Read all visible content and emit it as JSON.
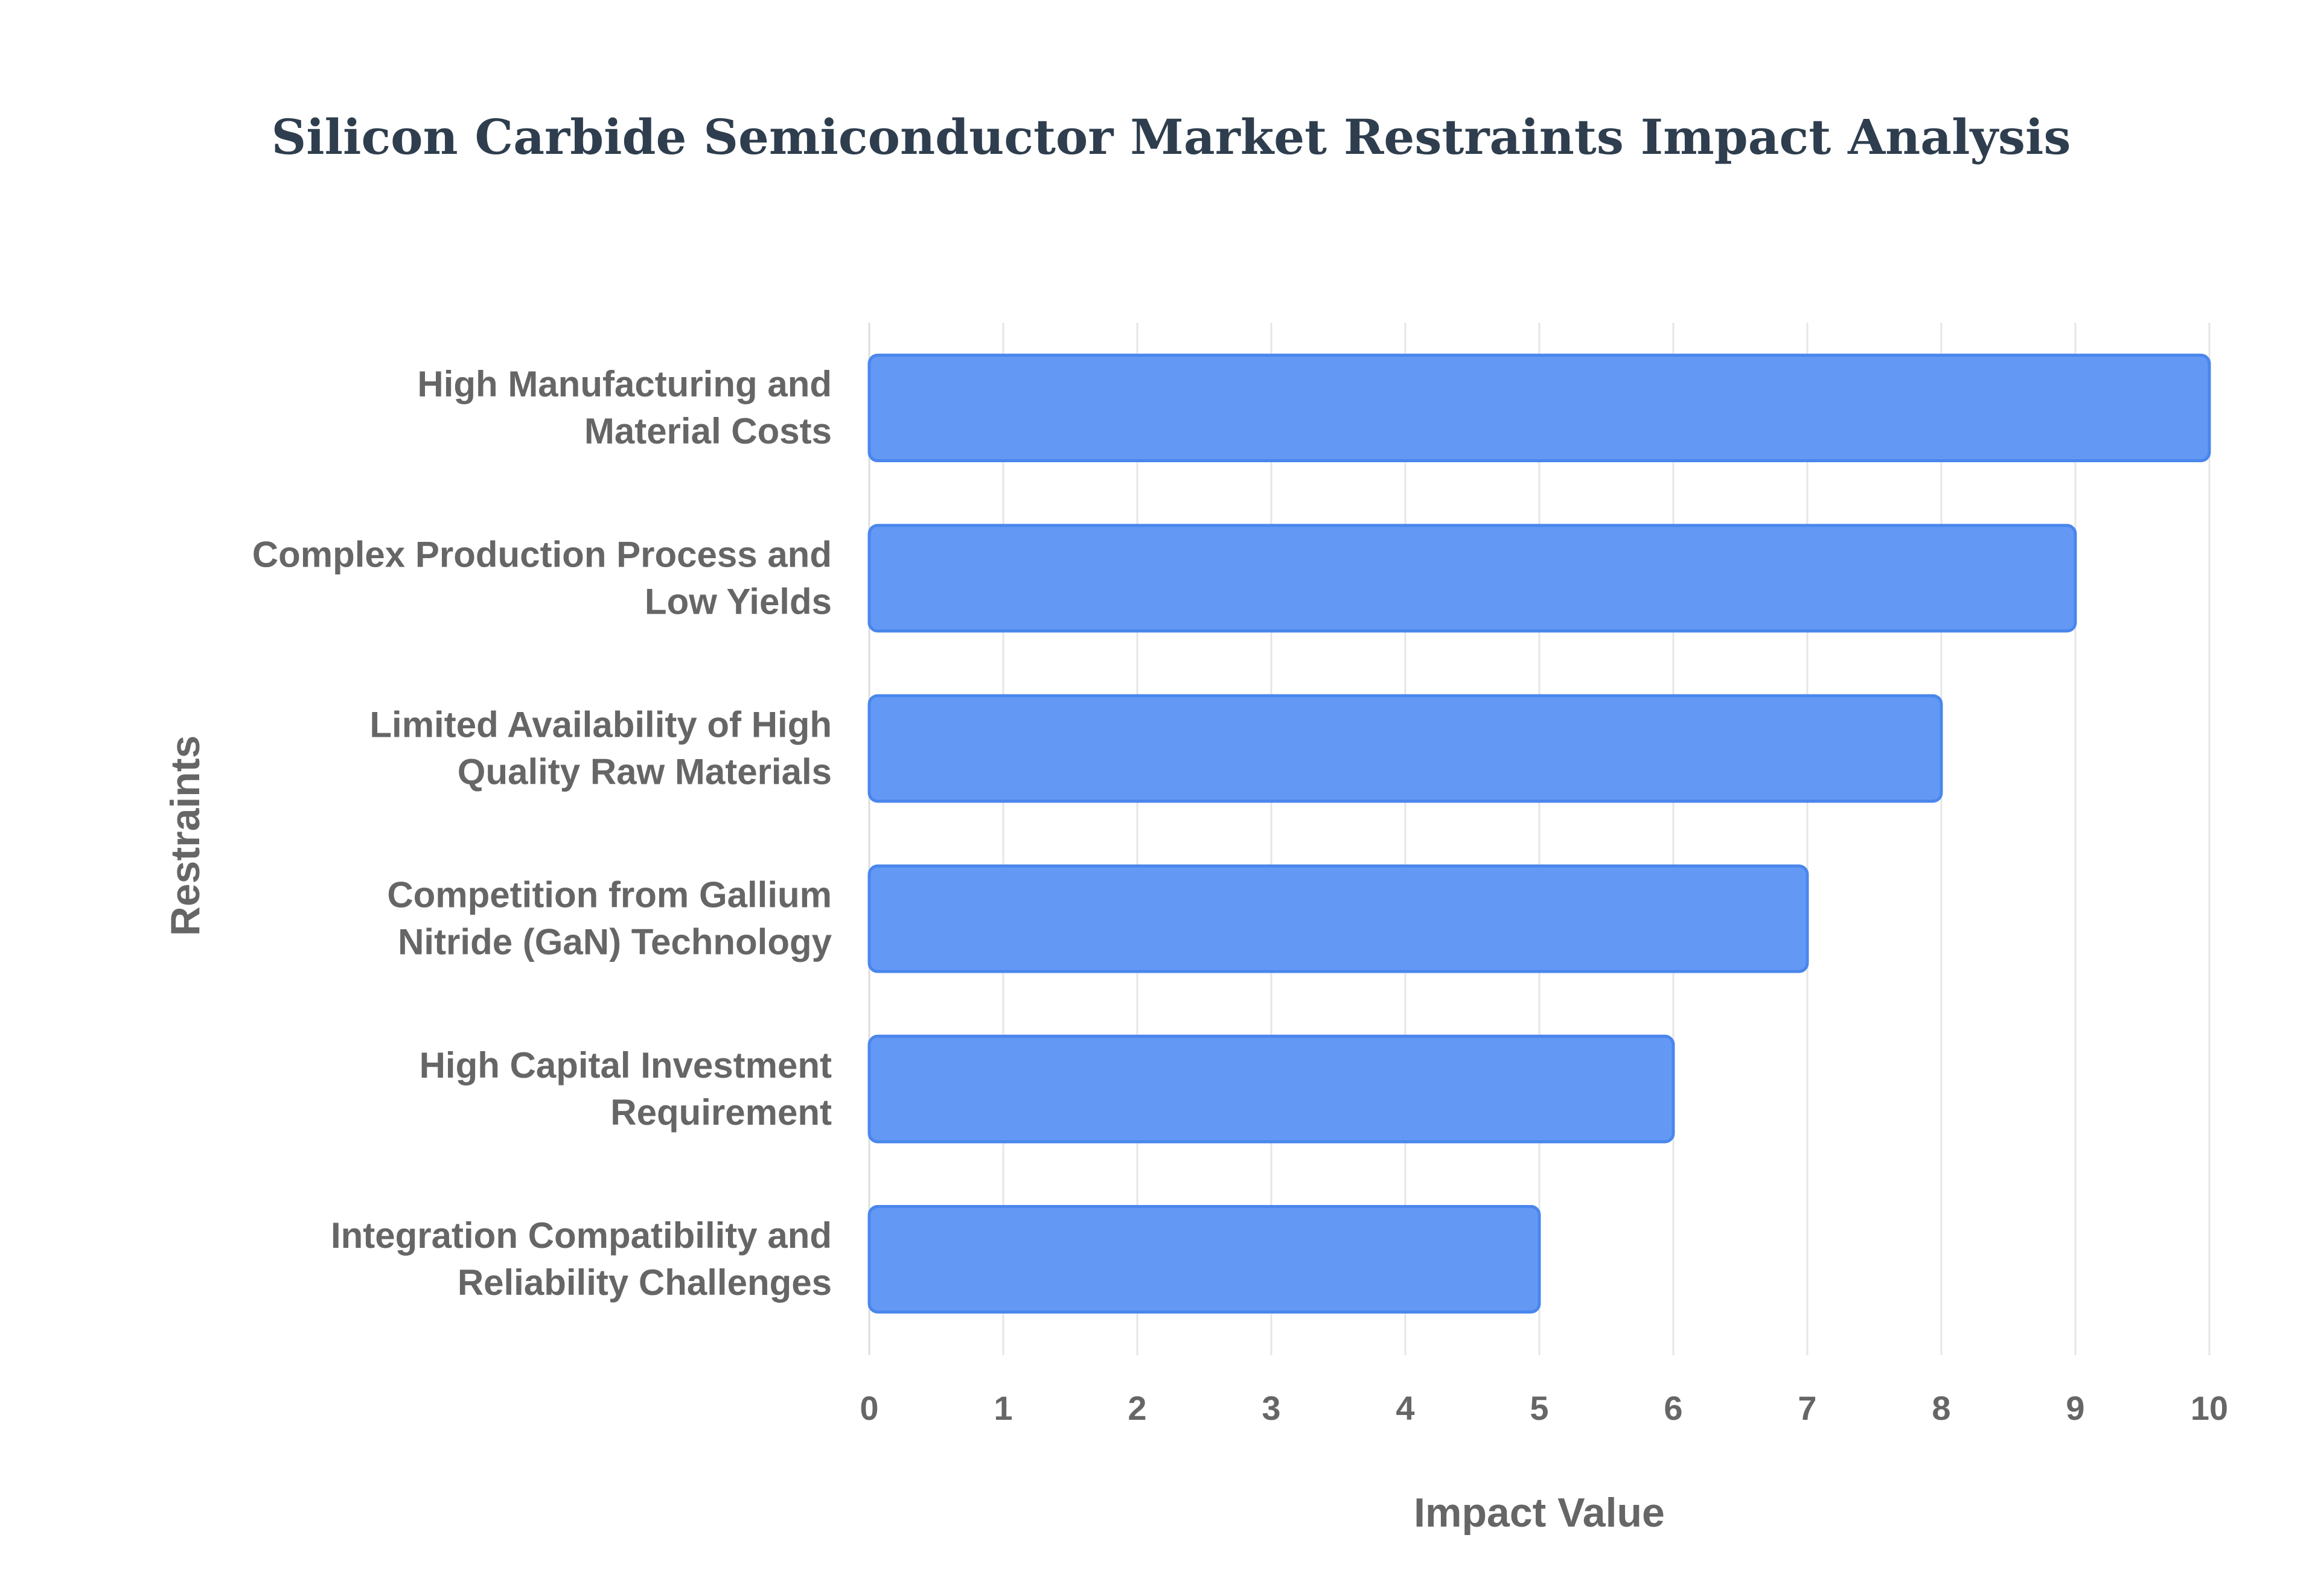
{
  "chart_data": {
    "type": "bar",
    "orientation": "horizontal",
    "title": "Silicon Carbide Semiconductor Market Restraints Impact Analysis",
    "xlabel": "Impact Value",
    "ylabel": "Restraints",
    "xlim": [
      0,
      10
    ],
    "x_ticks": [
      "0",
      "1",
      "2",
      "3",
      "4",
      "5",
      "6",
      "7",
      "8",
      "9",
      "10"
    ],
    "grid": true,
    "legend": "none",
    "categories": [
      [
        "High Manufacturing and",
        "Material Costs"
      ],
      [
        "Complex Production Process and",
        "Low Yields"
      ],
      [
        "Limited Availability of High",
        "Quality Raw Materials"
      ],
      [
        "Competition from Gallium",
        "Nitride (GaN) Technology"
      ],
      [
        "High Capital Investment",
        "Requirement"
      ],
      [
        "Integration Compatibility and",
        "Reliability Challenges"
      ]
    ],
    "values": [
      10,
      9,
      8,
      7,
      6,
      5
    ],
    "colors": {
      "bar_fill": "#6399f5",
      "bar_border": "#4a86ec",
      "title": "#2f3e4e",
      "text": "#666666",
      "grid": "#e6e6e6"
    }
  }
}
